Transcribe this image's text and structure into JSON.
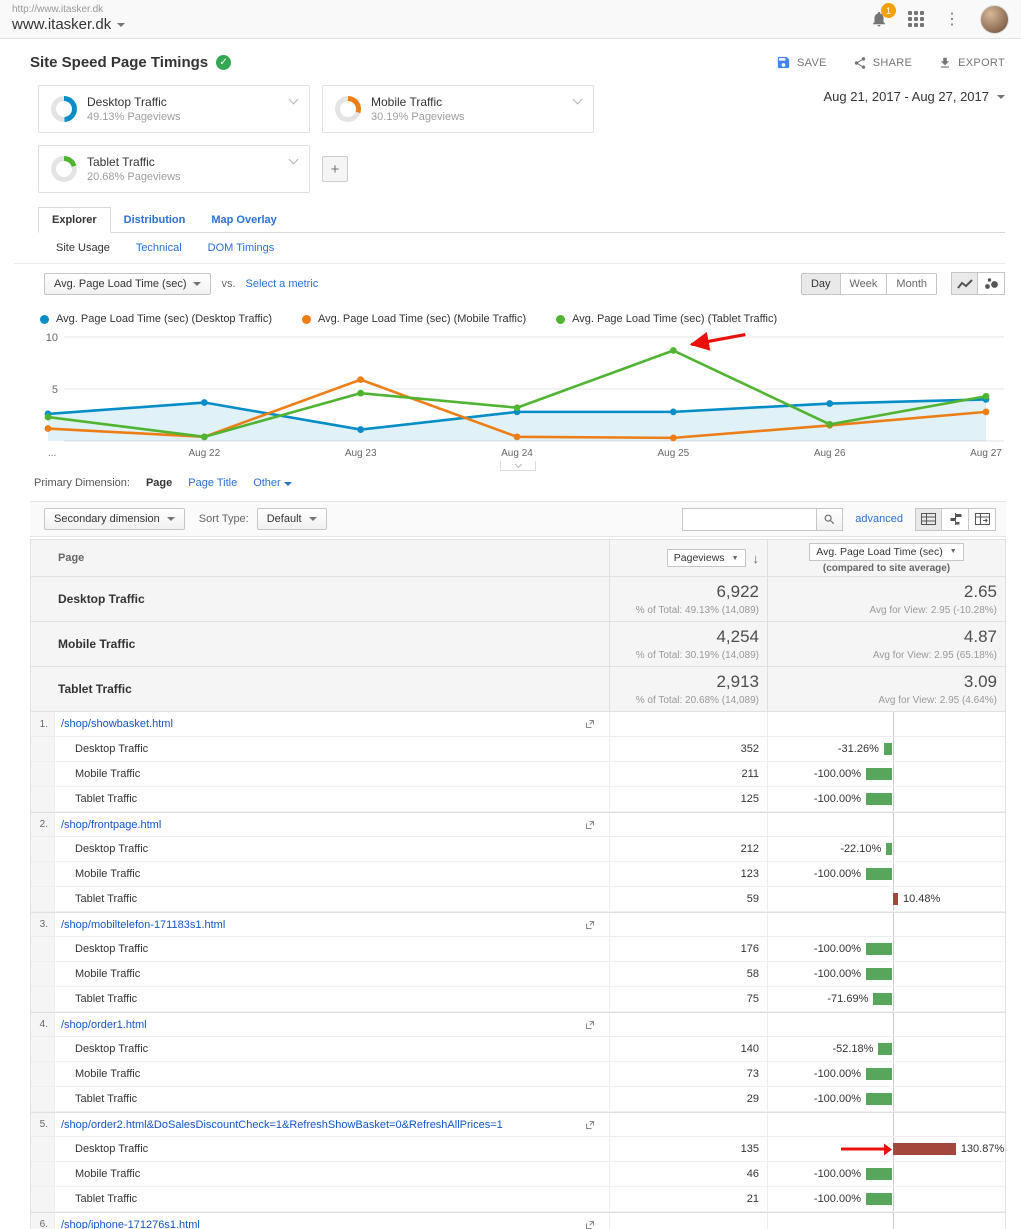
{
  "header": {
    "url": "http://www.itasker.dk",
    "account_name": "www.itasker.dk",
    "notification_count": "1"
  },
  "icons": {
    "check": "✓",
    "ellipsis": "⋮",
    "plus": "+",
    "sort_down": "↓",
    "select_caret": "▼"
  },
  "title_bar": {
    "title": "Site Speed Page Timings",
    "save_label": "SAVE",
    "share_label": "SHARE",
    "export_label": "EXPORT"
  },
  "date_range": "Aug 21, 2017 - Aug 27, 2017",
  "segments": [
    {
      "name": "Desktop Traffic",
      "detail": "49.13% Pageviews",
      "color": "#058dc7",
      "pct": 49.13
    },
    {
      "name": "Mobile Traffic",
      "detail": "30.19% Pageviews",
      "color": "#ed7e17",
      "pct": 30.19
    },
    {
      "name": "Tablet Traffic",
      "detail": "20.68% Pageviews",
      "color": "#50b432",
      "pct": 20.68
    }
  ],
  "tabs": {
    "explorer": "Explorer",
    "distribution": "Distribution",
    "map_overlay": "Map Overlay"
  },
  "subtabs": {
    "site_usage": "Site Usage",
    "technical": "Technical",
    "dom_timings": "DOM Timings"
  },
  "metric_bar": {
    "metric_selector": "Avg. Page Load Time (sec)",
    "vs": "vs.",
    "select_metric": "Select a metric",
    "day": "Day",
    "week": "Week",
    "month": "Month"
  },
  "legend": [
    {
      "label": "Avg. Page Load Time (sec) (Desktop Traffic)",
      "color": "#058dc7"
    },
    {
      "label": "Avg. Page Load Time (sec) (Mobile Traffic)",
      "color": "#ed7e17"
    },
    {
      "label": "Avg. Page Load Time (sec) (Tablet Traffic)",
      "color": "#50b432"
    }
  ],
  "chart_data": {
    "type": "line",
    "title": "Avg. Page Load Time (sec) by day",
    "x": [
      "...",
      "Aug 22",
      "Aug 23",
      "Aug 24",
      "Aug 25",
      "Aug 26",
      "Aug 27"
    ],
    "series": [
      {
        "name": "Avg. Page Load Time (sec) (Desktop Traffic)",
        "color": "#058dc7",
        "area": true,
        "values": [
          2.6,
          3.7,
          1.1,
          2.8,
          2.8,
          3.6,
          4.0
        ]
      },
      {
        "name": "Avg. Page Load Time (sec) (Mobile Traffic)",
        "color": "#ed7e17",
        "area": false,
        "values": [
          1.2,
          0.4,
          5.9,
          0.4,
          0.3,
          1.5,
          2.8
        ]
      },
      {
        "name": "Avg. Page Load Time (sec) (Tablet Traffic)",
        "color": "#50b432",
        "area": false,
        "values": [
          2.3,
          0.4,
          4.6,
          3.2,
          8.7,
          1.6,
          4.3
        ]
      }
    ],
    "xlabel": "",
    "ylabel": "",
    "ylim": [
      0,
      10
    ],
    "yticks": [
      5,
      10
    ],
    "grid": true,
    "legend_position": "top",
    "annotation": {
      "type": "red-arrow",
      "series": 2,
      "index": 4
    }
  },
  "primary_dimension": {
    "label": "Primary Dimension:",
    "active": "Page",
    "links": [
      "Page Title",
      "Other"
    ]
  },
  "toolbar": {
    "secondary_dimension": "Secondary dimension",
    "sort_type_label": "Sort Type:",
    "sort_type_value": "Default",
    "search_value": "",
    "advanced_label": "advanced"
  },
  "table": {
    "col_page": "Page",
    "col_pageviews": "Pageviews",
    "col_avg": "Avg. Page Load Time (sec)",
    "col_avg_note": "(compared to site average)",
    "colors": {
      "decrease_bar": "#58a55c",
      "increase_bar": "#a5463d"
    },
    "summary_rows": [
      {
        "name": "Desktop Traffic",
        "pageviews": "6,922",
        "pageviews_note": "% of Total: 49.13% (14,089)",
        "avg": "2.65",
        "avg_note": "Avg for View: 2.95 (-10.28%)"
      },
      {
        "name": "Mobile Traffic",
        "pageviews": "4,254",
        "pageviews_note": "% of Total: 30.19% (14,089)",
        "avg": "4.87",
        "avg_note": "Avg for View: 2.95 (65.18%)"
      },
      {
        "name": "Tablet Traffic",
        "pageviews": "2,913",
        "pageviews_note": "% of Total: 20.68% (14,089)",
        "avg": "3.09",
        "avg_note": "Avg for View: 2.95 (4.64%)"
      }
    ],
    "rows": [
      {
        "index": "1.",
        "page": "/shop/showbasket.html",
        "segments": [
          {
            "name": "Desktop Traffic",
            "pageviews": "352",
            "delta_pct": -31.26,
            "delta_label": "-31.26%"
          },
          {
            "name": "Mobile Traffic",
            "pageviews": "211",
            "delta_pct": -100,
            "delta_label": "-100.00%"
          },
          {
            "name": "Tablet Traffic",
            "pageviews": "125",
            "delta_pct": -100,
            "delta_label": "-100.00%"
          }
        ]
      },
      {
        "index": "2.",
        "page": "/shop/frontpage.html",
        "segments": [
          {
            "name": "Desktop Traffic",
            "pageviews": "212",
            "delta_pct": -22.1,
            "delta_label": "-22.10%"
          },
          {
            "name": "Mobile Traffic",
            "pageviews": "123",
            "delta_pct": -100,
            "delta_label": "-100.00%"
          },
          {
            "name": "Tablet Traffic",
            "pageviews": "59",
            "delta_pct": 10.48,
            "delta_label": "10.48%"
          }
        ]
      },
      {
        "index": "3.",
        "page": "/shop/mobiltelefon-171183s1.html",
        "segments": [
          {
            "name": "Desktop Traffic",
            "pageviews": "176",
            "delta_pct": -100,
            "delta_label": "-100.00%"
          },
          {
            "name": "Mobile Traffic",
            "pageviews": "58",
            "delta_pct": -100,
            "delta_label": "-100.00%"
          },
          {
            "name": "Tablet Traffic",
            "pageviews": "75",
            "delta_pct": -71.69,
            "delta_label": "-71.69%"
          }
        ]
      },
      {
        "index": "4.",
        "page": "/shop/order1.html",
        "segments": [
          {
            "name": "Desktop Traffic",
            "pageviews": "140",
            "delta_pct": -52.18,
            "delta_label": "-52.18%"
          },
          {
            "name": "Mobile Traffic",
            "pageviews": "73",
            "delta_pct": -100,
            "delta_label": "-100.00%"
          },
          {
            "name": "Tablet Traffic",
            "pageviews": "29",
            "delta_pct": -100,
            "delta_label": "-100.00%"
          }
        ]
      },
      {
        "index": "5.",
        "page": "/shop/order2.html&DoSalesDiscountCheck=1&RefreshShowBasket=0&RefreshAllPrices=1",
        "segments": [
          {
            "name": "Desktop Traffic",
            "pageviews": "135",
            "delta_pct": 130.87,
            "delta_label": "130.87%",
            "arrow": true
          },
          {
            "name": "Mobile Traffic",
            "pageviews": "46",
            "delta_pct": -100,
            "delta_label": "-100.00%"
          },
          {
            "name": "Tablet Traffic",
            "pageviews": "21",
            "delta_pct": -100,
            "delta_label": "-100.00%"
          }
        ]
      },
      {
        "index": "6.",
        "page": "/shop/iphone-171276s1.html",
        "segments": []
      }
    ]
  }
}
